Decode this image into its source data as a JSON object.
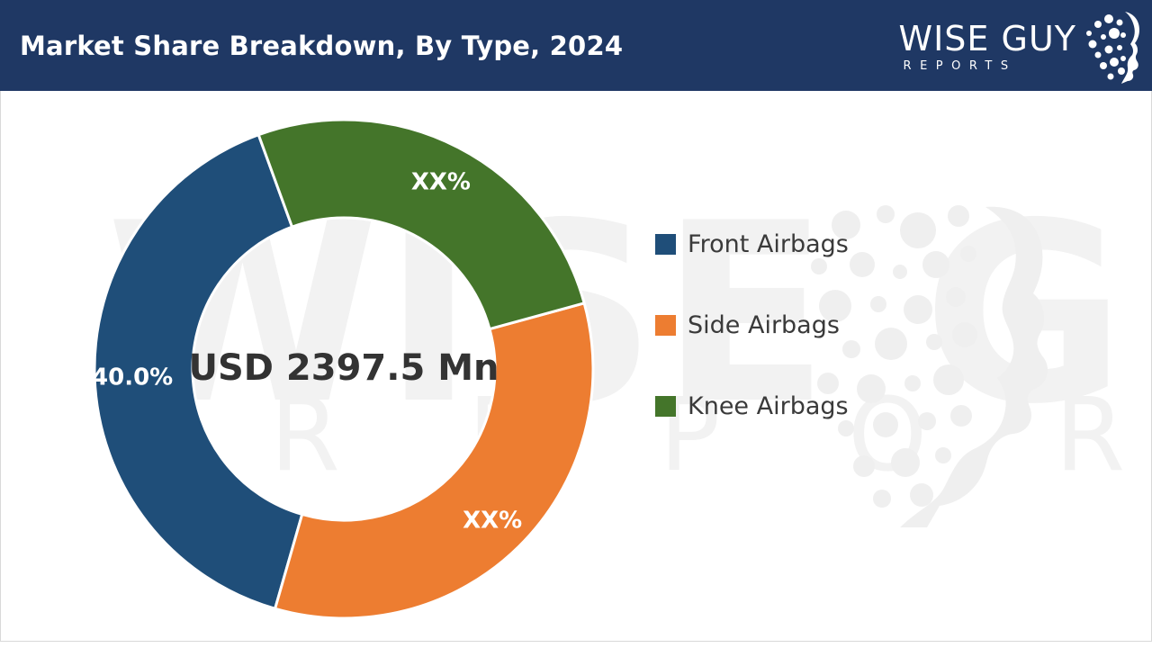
{
  "header": {
    "title": "Market Share Breakdown, By Type, 2024",
    "bg_color": "#1F3864",
    "logo": {
      "line1": "WISE GUY",
      "line2": "REPORTS"
    }
  },
  "watermark": {
    "line1": "WISE GUY",
    "line2": "REPORTS"
  },
  "chart_data": {
    "type": "pie",
    "subtype": "donut",
    "title": "Market Share Breakdown, By Type, 2024",
    "center_label": "USD 2397.5 Mn",
    "total_value": "USD 2397.5 Mn",
    "start_angle_deg": 110,
    "direction": "counterclockwise",
    "legend_position": "right",
    "slice_label_color": "#ffffff",
    "slices": [
      {
        "name": "Front Airbags",
        "color": "#1F4E79",
        "percent": 40.0,
        "display_label": "40.0%"
      },
      {
        "name": "Side Airbags",
        "color": "#ED7D31",
        "percent": 33.7,
        "display_label": "XX%"
      },
      {
        "name": "Knee Airbags",
        "color": "#44752A",
        "percent": 26.3,
        "display_label": "XX%"
      }
    ]
  },
  "colors": {
    "header_bg": "#1F3864",
    "watermark": "#F2F2F2",
    "border": "#D9D9D9",
    "center_text": "#333333",
    "legend_text": "#3a3a3a"
  }
}
